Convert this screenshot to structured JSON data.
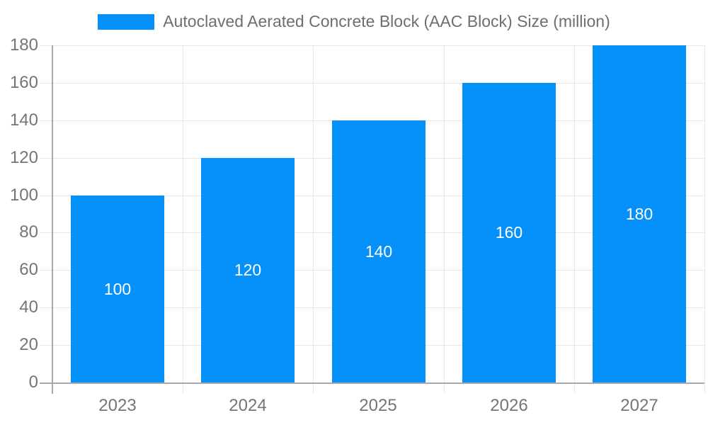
{
  "chart_data": {
    "type": "bar",
    "title": "Autoclaved Aerated Concrete Block (AAC Block) Size (million)",
    "categories": [
      "2023",
      "2024",
      "2025",
      "2026",
      "2027"
    ],
    "values": [
      100,
      120,
      140,
      160,
      180
    ],
    "xlabel": "",
    "ylabel": "",
    "ylim": [
      0,
      180
    ],
    "yticks": [
      0,
      20,
      40,
      60,
      80,
      100,
      120,
      140,
      160,
      180
    ],
    "grid": "both",
    "legend_position": "top",
    "bar_color": "#0590fa",
    "value_label_color": "#ffffff",
    "axis_text_color": "#757575",
    "title_color": "#6e6e6e",
    "grid_color": "#e6e6e6",
    "axis_line_color": "#a8a8a8",
    "background_color": "#ffffff"
  }
}
